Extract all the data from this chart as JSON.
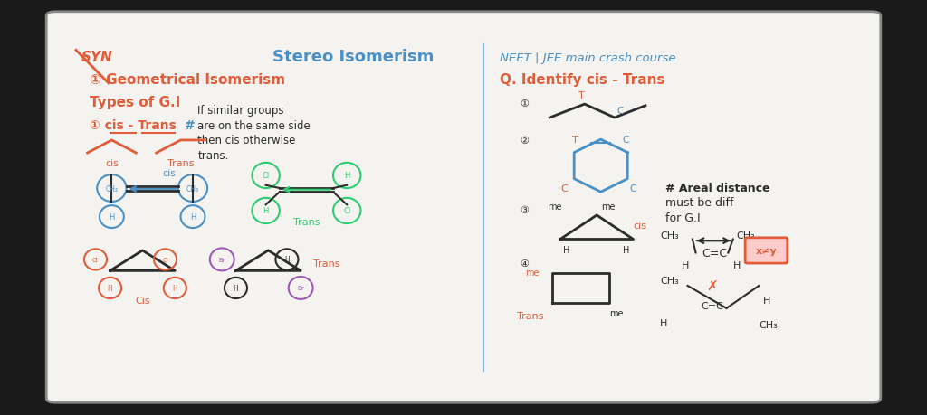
{
  "bg_color": "#1a1a1a",
  "board_color": "#f5f3f0",
  "title": "Stereo Isomerism",
  "subtitle": "NEET | JEE main crash course",
  "left_tag": "SYN",
  "heading1": "① Geometrical Isomerism",
  "heading2": "Types of G.I",
  "item1": "① cis - Trans",
  "q_heading": "Q. Identify cis - Trans",
  "note_line1": "# Areal distance",
  "note_line2": "must be diff",
  "note_line3": "for G.I",
  "cis_label": "cis",
  "trans_label": "Trans",
  "title_color": "#4a90c4",
  "heading_color": "#e05c3a",
  "text_color": "#2a6090",
  "green_color": "#2ecc71",
  "pink_color": "#e05c3a",
  "purple_color": "#9b59b6",
  "dark_color": "#2c2c2c",
  "divider_color": "#7ab8d4"
}
